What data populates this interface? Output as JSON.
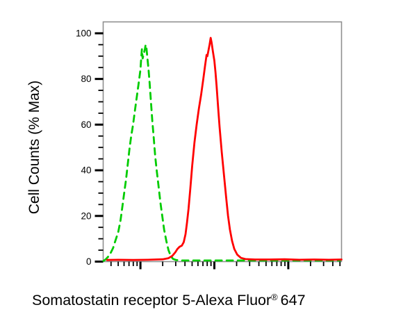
{
  "figure": {
    "background": "#ffffff"
  },
  "chart_data": {
    "type": "line",
    "subtype": "flow-cytometry-overlay-histogram",
    "title": "",
    "ylabel": "Cell Counts (% Max)",
    "xlabel_main": "Somatostatin receptor 5-Alexa Fluor",
    "xlabel_sup": "®",
    "xlabel_suffix": "647",
    "grid": false,
    "legend": false,
    "frame_color": "#8f8f8f",
    "tick_color": "#000000",
    "text_color": "#000000",
    "y_axis": {
      "range": [
        0,
        105
      ],
      "major_ticks": [
        0,
        20,
        40,
        60,
        80,
        100
      ],
      "tick_labels": [
        "0",
        "20",
        "40",
        "60",
        "80",
        "100"
      ],
      "minor_tick_step": 5
    },
    "x_axis": {
      "scale": "log10",
      "range_log10": [
        0.496,
        3.72
      ],
      "major_ticks_log10": [
        1,
        2,
        3
      ],
      "minor_tick_multiples": [
        2,
        3,
        4,
        5,
        6,
        7,
        8,
        9
      ],
      "tick_labels": []
    },
    "series": [
      {
        "name": "green-dashed",
        "color": "#00cc00",
        "line_style": "dashed",
        "points": [
          [
            0.5,
            0.3
          ],
          [
            0.53,
            1
          ],
          [
            0.56,
            2
          ],
          [
            0.6,
            4
          ],
          [
            0.63,
            6
          ],
          [
            0.66,
            9
          ],
          [
            0.7,
            13
          ],
          [
            0.73,
            18
          ],
          [
            0.755,
            24
          ],
          [
            0.78,
            30
          ],
          [
            0.805,
            36
          ],
          [
            0.83,
            43
          ],
          [
            0.85,
            49
          ],
          [
            0.875,
            55
          ],
          [
            0.9,
            60
          ],
          [
            0.925,
            66
          ],
          [
            0.95,
            72
          ],
          [
            0.975,
            78
          ],
          [
            1.0,
            84
          ],
          [
            1.01,
            89
          ],
          [
            1.02,
            93
          ],
          [
            1.03,
            89
          ],
          [
            1.045,
            91
          ],
          [
            1.06,
            93
          ],
          [
            1.07,
            95
          ],
          [
            1.08,
            94
          ],
          [
            1.095,
            89
          ],
          [
            1.11,
            84
          ],
          [
            1.125,
            78
          ],
          [
            1.14,
            71
          ],
          [
            1.16,
            62
          ],
          [
            1.18,
            54
          ],
          [
            1.2,
            46
          ],
          [
            1.22,
            40
          ],
          [
            1.245,
            33
          ],
          [
            1.27,
            26
          ],
          [
            1.295,
            20
          ],
          [
            1.32,
            14
          ],
          [
            1.35,
            9
          ],
          [
            1.38,
            5
          ],
          [
            1.41,
            2.5
          ],
          [
            1.44,
            1.2
          ],
          [
            1.48,
            0.7
          ],
          [
            1.55,
            0.5
          ],
          [
            1.7,
            0.5
          ],
          [
            1.9,
            0.5
          ],
          [
            2.1,
            0.5
          ],
          [
            2.3,
            0.5
          ],
          [
            2.5,
            0.5
          ],
          [
            2.7,
            0.5
          ],
          [
            2.9,
            0.5
          ],
          [
            3.1,
            0.5
          ],
          [
            3.3,
            0.5
          ],
          [
            3.5,
            0.5
          ],
          [
            3.7,
            0.5
          ]
        ]
      },
      {
        "name": "red-solid",
        "color": "#ff0000",
        "line_style": "solid",
        "points": [
          [
            0.55,
            0.7
          ],
          [
            0.7,
            0.8
          ],
          [
            0.9,
            0.7
          ],
          [
            1.1,
            0.8
          ],
          [
            1.3,
            1.0
          ],
          [
            1.38,
            1.5
          ],
          [
            1.43,
            2.5
          ],
          [
            1.47,
            4
          ],
          [
            1.5,
            5.5
          ],
          [
            1.53,
            6.5
          ],
          [
            1.56,
            7
          ],
          [
            1.585,
            8.5
          ],
          [
            1.61,
            12
          ],
          [
            1.63,
            17
          ],
          [
            1.65,
            23
          ],
          [
            1.675,
            32
          ],
          [
            1.7,
            42
          ],
          [
            1.73,
            52
          ],
          [
            1.76,
            60
          ],
          [
            1.79,
            67
          ],
          [
            1.82,
            73
          ],
          [
            1.85,
            80
          ],
          [
            1.875,
            86
          ],
          [
            1.895,
            90.5
          ],
          [
            1.905,
            90
          ],
          [
            1.92,
            92.5
          ],
          [
            1.935,
            95
          ],
          [
            1.95,
            98
          ],
          [
            1.962,
            96
          ],
          [
            1.98,
            92
          ],
          [
            2.0,
            88
          ],
          [
            2.015,
            83
          ],
          [
            2.03,
            77
          ],
          [
            2.05,
            68
          ],
          [
            2.07,
            59
          ],
          [
            2.1,
            48
          ],
          [
            2.13,
            38
          ],
          [
            2.16,
            28
          ],
          [
            2.185,
            20
          ],
          [
            2.21,
            14
          ],
          [
            2.24,
            9
          ],
          [
            2.27,
            5.5
          ],
          [
            2.31,
            3
          ],
          [
            2.36,
            1.6
          ],
          [
            2.42,
            1.1
          ],
          [
            2.55,
            0.9
          ],
          [
            2.75,
            0.9
          ],
          [
            2.95,
            1.0
          ],
          [
            3.15,
            0.8
          ],
          [
            3.35,
            0.9
          ],
          [
            3.55,
            0.8
          ],
          [
            3.72,
            0.9
          ]
        ]
      }
    ]
  }
}
